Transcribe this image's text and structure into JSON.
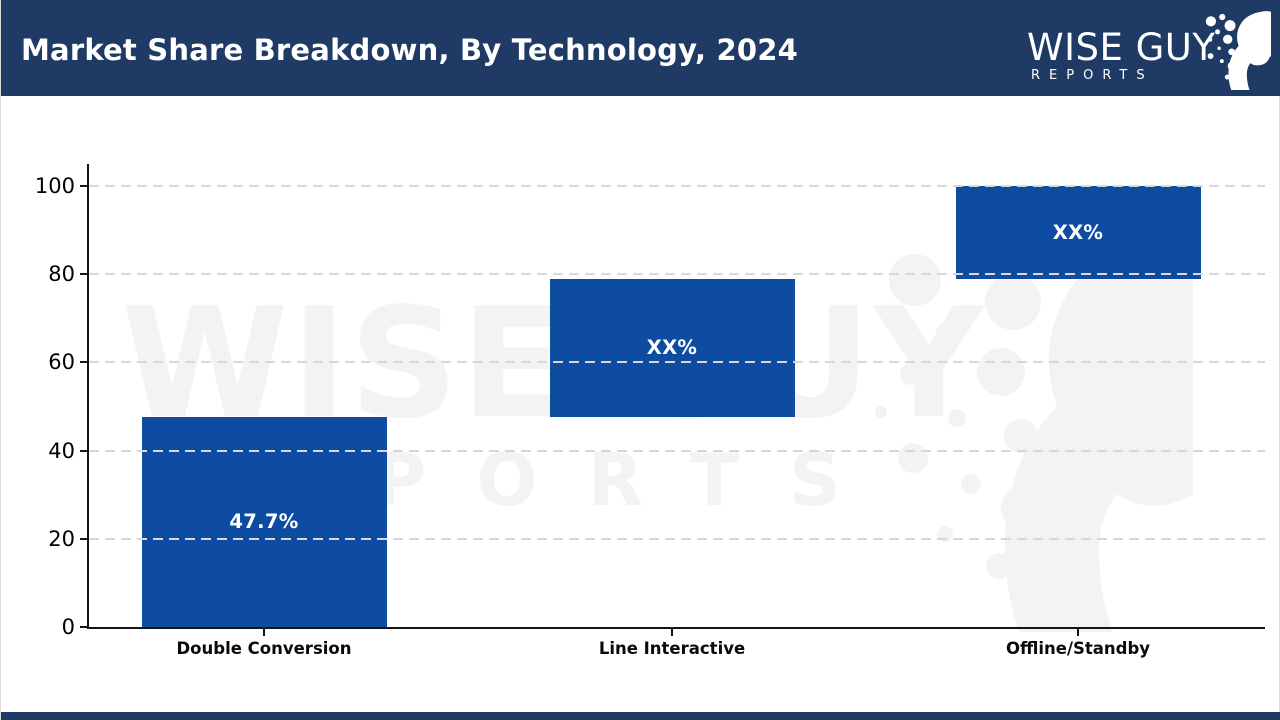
{
  "header": {
    "title": "Market Share Breakdown, By Technology, 2024",
    "logo": {
      "line1": "WISE GUY",
      "line2": "REPORTS"
    }
  },
  "watermark": {
    "line1": "WISE GUY",
    "line2": "REPORTS"
  },
  "chart_data": {
    "type": "bar",
    "variant": "waterfall",
    "title": "Market Share Breakdown, By Technology, 2024",
    "categories": [
      "Double Conversion",
      "Line Interactive",
      "Offline/Standby"
    ],
    "bars": [
      {
        "category": "Double Conversion",
        "start": 0,
        "end": 47.7,
        "label": "47.7%"
      },
      {
        "category": "Line Interactive",
        "start": 47.7,
        "end": 79,
        "label": "XX%"
      },
      {
        "category": "Offline/Standby",
        "start": 79,
        "end": 100,
        "label": "XX%"
      }
    ],
    "yticks": [
      0,
      20,
      40,
      60,
      80,
      100
    ],
    "ylim": [
      0,
      105
    ],
    "xlabel": "",
    "ylabel": "",
    "grid": "horizontal-dashed",
    "legend": "none",
    "bar_color": "#0d4ca0",
    "bar_label_color": "#ffffff",
    "grid_color": "#d7d7d7",
    "axis_color": "#151515",
    "header_color": "#203a66",
    "watermark_color": "#f3f3f3"
  }
}
